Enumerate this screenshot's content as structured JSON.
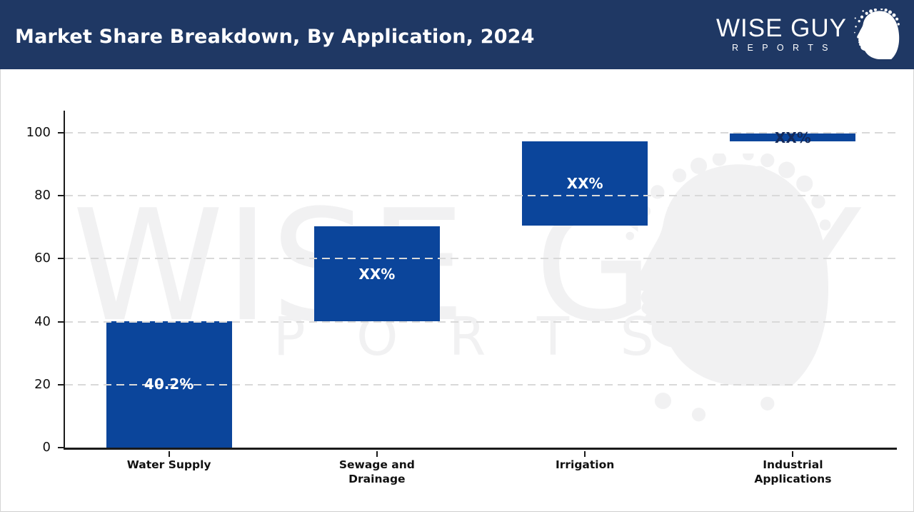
{
  "header": {
    "title": "Market Share Breakdown, By Application, 2024",
    "bg_color": "#1f3864",
    "logo": {
      "name": "WISE GUY",
      "sub": "R E P O R T S"
    }
  },
  "watermark": {
    "line1": "WISE GUY",
    "line2": "P O R T S"
  },
  "chart_data": {
    "type": "bar",
    "subtype": "waterfall-percentage-stack",
    "title": "Market Share Breakdown, By Application, 2024",
    "categories": [
      "Water Supply",
      "Sewage and Drainage",
      "Irrigation",
      "Industrial Applications"
    ],
    "segments": [
      {
        "category": "Water Supply",
        "start": 0,
        "end": 40.2,
        "label": "40.2%",
        "label_color": "#ffffff"
      },
      {
        "category": "Sewage and Drainage",
        "start": 40.2,
        "end": 70.2,
        "label": "XX%",
        "label_color": "#ffffff"
      },
      {
        "category": "Irrigation",
        "start": 70.5,
        "end": 97.2,
        "label": "XX%",
        "label_color": "#ffffff"
      },
      {
        "category": "Industrial Applications",
        "start": 97.2,
        "end": 99.8,
        "label": "XX%",
        "label_color": "#13295a"
      }
    ],
    "yticks": [
      0,
      20,
      40,
      60,
      80,
      100
    ],
    "ylim": [
      0,
      107
    ],
    "xlabel": "",
    "ylabel": "",
    "bar_color": "#0b459b",
    "grid": "horizontal-dashed",
    "gridline_color": "#d9d9d9",
    "legend": "none"
  }
}
